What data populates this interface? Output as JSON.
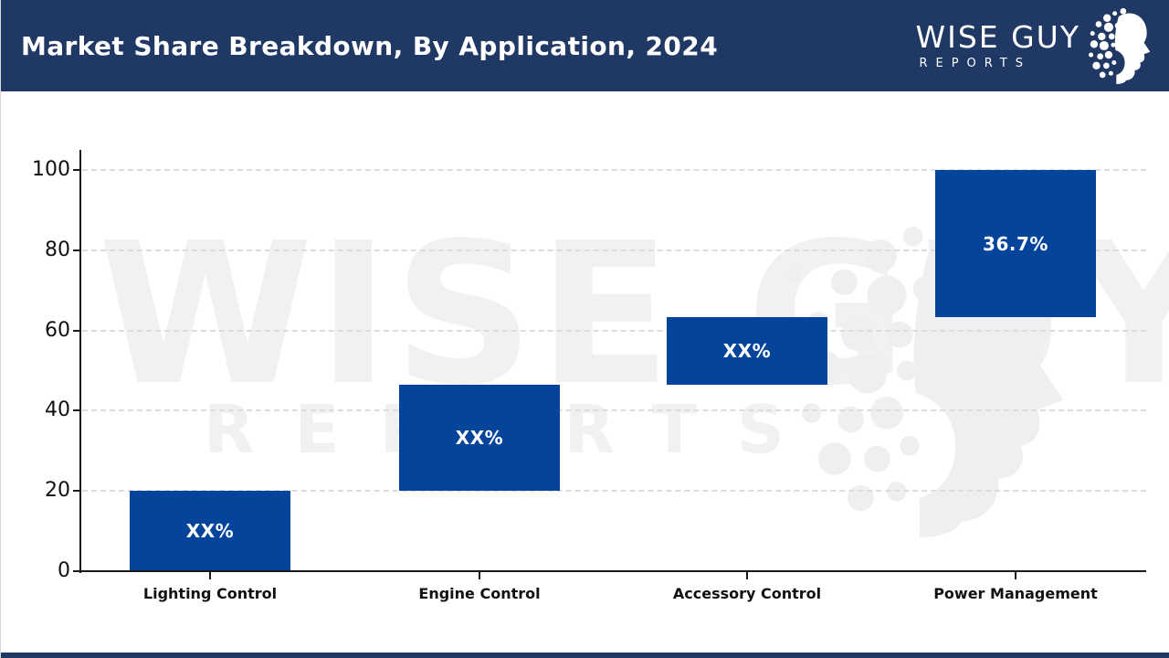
{
  "header": {
    "title": "Market Share Breakdown, By Application, 2024",
    "logo": {
      "name": "WISE GUY",
      "subname": "REPORTS"
    }
  },
  "watermark": {
    "line1": "WISE GUY",
    "line2": "REPORTS"
  },
  "chart_data": {
    "type": "bar",
    "subtype": "waterfall",
    "title": "Market Share Breakdown, By Application, 2024",
    "categories": [
      "Lighting Control",
      "Engine Control",
      "Accessory Control",
      "Power Management"
    ],
    "segments": [
      {
        "category": "Lighting Control",
        "label": "XX%",
        "start": 0,
        "end": 20
      },
      {
        "category": "Engine Control",
        "label": "XX%",
        "start": 20,
        "end": 46.5
      },
      {
        "category": "Accessory Control",
        "label": "XX%",
        "start": 46.5,
        "end": 63.3
      },
      {
        "category": "Power Management",
        "label": "36.7%",
        "start": 63.3,
        "end": 100
      }
    ],
    "segment_sizes_pct": [
      20,
      26.5,
      16.8,
      36.7
    ],
    "yticks": [
      0,
      20,
      40,
      60,
      80,
      100
    ],
    "ylim": [
      0,
      105
    ],
    "xlabel": "",
    "ylabel": "",
    "grid": "dashed-horizontal",
    "legend": "none",
    "bar_color": "#05449b"
  },
  "colors": {
    "header_bg": "#1f3864",
    "footer_bg": "#1f3864",
    "bar": "#05449b",
    "grid": "#dcdcdc",
    "watermark": "#f1f1f4",
    "axis": "#1a1a1a"
  }
}
